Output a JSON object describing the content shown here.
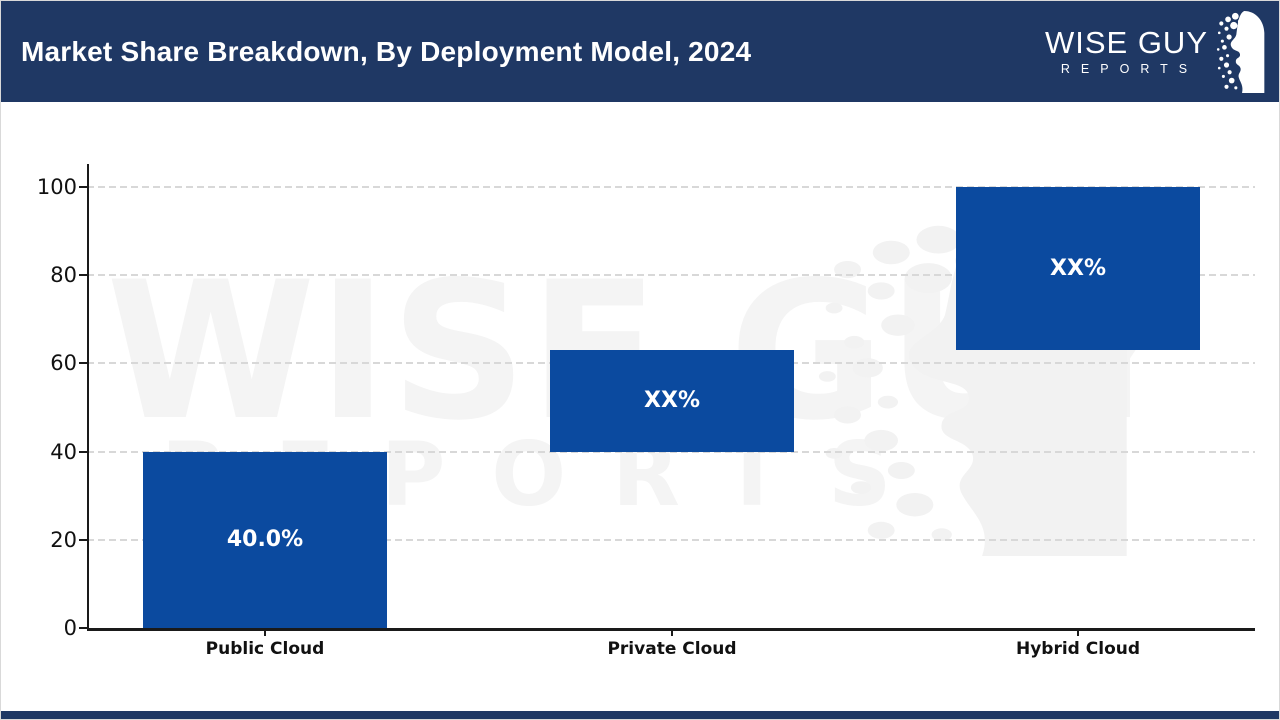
{
  "header": {
    "title": "Market Share Breakdown, By Deployment Model, 2024",
    "bg_color": "#1f3864",
    "logo": {
      "name": "WISE GUY",
      "sub": "REPORTS"
    }
  },
  "watermark": {
    "name": "WISE GUY",
    "sub": "REPORTS",
    "color": "#f4f4f4"
  },
  "footer": {
    "bg_color": "#1f3864"
  },
  "chart_data": {
    "type": "bar",
    "subtype": "floating-waterfall",
    "title": "Market Share Breakdown, By Deployment Model, 2024",
    "categories": [
      "Public Cloud",
      "Private Cloud",
      "Hybrid Cloud"
    ],
    "segments": [
      {
        "category": "Public Cloud",
        "start": 0,
        "end": 40,
        "label": "40.0%"
      },
      {
        "category": "Private Cloud",
        "start": 40,
        "end": 63,
        "label": "XX%"
      },
      {
        "category": "Hybrid Cloud",
        "start": 63,
        "end": 100,
        "label": "XX%"
      }
    ],
    "values": [
      40,
      23,
      37
    ],
    "xlabel": "",
    "ylabel": "",
    "yticks": [
      0,
      20,
      40,
      60,
      80,
      100
    ],
    "ylim": [
      0,
      105
    ],
    "grid": {
      "horizontal": true,
      "style": "dashed",
      "color": "#d8d8d8"
    },
    "legend": "none",
    "bar_color": "#0b4a9f",
    "bar_label_color": "#ffffff"
  }
}
